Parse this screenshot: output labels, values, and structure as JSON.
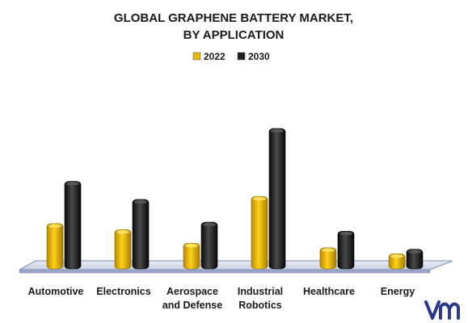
{
  "chart_data": {
    "type": "bar",
    "title_lines": [
      "GLOBAL GRAPHENE BATTERY MARKET,",
      "BY APPLICATION"
    ],
    "categories": [
      [
        "Automotive"
      ],
      [
        "Electronics"
      ],
      [
        "Aerospace",
        "and Defense"
      ],
      [
        "Industrial",
        "Robotics"
      ],
      [
        "Healthcare"
      ],
      [
        "Energy"
      ]
    ],
    "series": [
      {
        "name": "2022",
        "values": [
          30,
          26,
          17,
          48,
          14,
          10
        ],
        "color": "#e8b800"
      },
      {
        "name": "2030",
        "values": [
          58,
          46,
          31,
          93,
          25,
          13
        ],
        "color": "#1f1f1f"
      }
    ],
    "ylim": [
      0,
      100
    ],
    "xlabel": "",
    "ylabel": "",
    "grid": false,
    "legend_position": "top-center"
  },
  "brand": {
    "logo_icon": "vmr-logo",
    "color": "#2b3a8f"
  }
}
